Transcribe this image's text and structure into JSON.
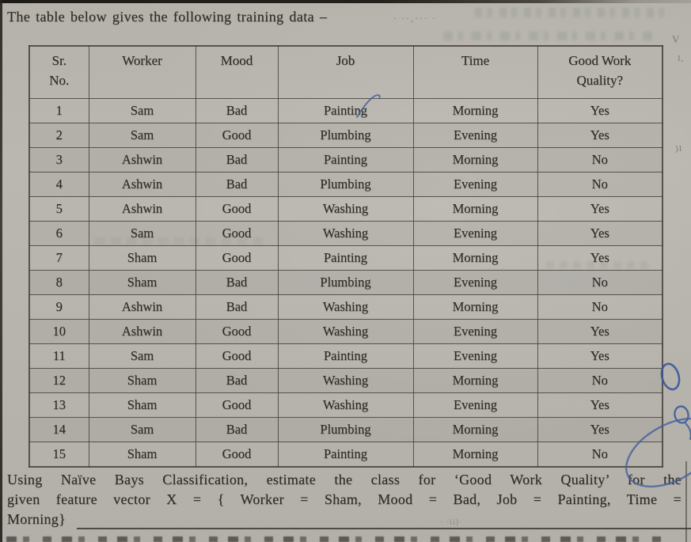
{
  "document": {
    "intro_line": "The table below gives the following training data –",
    "question_lines": [
      "Using Naïve Bays Classification, estimate the class for ‘Good Work Quality’ for the",
      "given feature vector X = { Worker = Sham, Mood = Bad, Job = Painting, Time =",
      "Morning}"
    ]
  },
  "table": {
    "headers": [
      "Sr.\nNo.",
      "Worker",
      "Mood",
      "Job",
      "Time",
      "Good Work\nQuality?"
    ],
    "rows": [
      [
        "1",
        "Sam",
        "Bad",
        "Painting",
        "Morning",
        "Yes"
      ],
      [
        "2",
        "Sam",
        "Good",
        "Plumbing",
        "Evening",
        "Yes"
      ],
      [
        "3",
        "Ashwin",
        "Bad",
        "Painting",
        "Morning",
        "No"
      ],
      [
        "4",
        "Ashwin",
        "Bad",
        "Plumbing",
        "Evening",
        "No"
      ],
      [
        "5",
        "Ashwin",
        "Good",
        "Washing",
        "Morning",
        "Yes"
      ],
      [
        "6",
        "Sam",
        "Good",
        "Washing",
        "Evening",
        "Yes"
      ],
      [
        "7",
        "Sham",
        "Good",
        "Painting",
        "Morning",
        "Yes"
      ],
      [
        "8",
        "Sham",
        "Bad",
        "Plumbing",
        "Evening",
        "No"
      ],
      [
        "9",
        "Ashwin",
        "Bad",
        "Washing",
        "Morning",
        "No"
      ],
      [
        "10",
        "Ashwin",
        "Good",
        "Washing",
        "Evening",
        "Yes"
      ],
      [
        "11",
        "Sam",
        "Good",
        "Painting",
        "Evening",
        "Yes"
      ],
      [
        "12",
        "Sham",
        "Bad",
        "Washing",
        "Morning",
        "No"
      ],
      [
        "13",
        "Sham",
        "Good",
        "Washing",
        "Evening",
        "Yes"
      ],
      [
        "14",
        "Sam",
        "Bad",
        "Plumbing",
        "Morning",
        "Yes"
      ],
      [
        "15",
        "Sham",
        "Good",
        "Painting",
        "Morning",
        "No"
      ]
    ]
  },
  "annotations": {
    "pen_color": "#44619f",
    "marks": [
      "tick-on-row1-painting",
      "zero-mark",
      "small-o-mark",
      "large-circle"
    ]
  },
  "artifacts": {
    "intro_trailing": "· ··‚··· ·",
    "margin_marks": [
      "V",
      "1,",
      ")1"
    ],
    "bottom_mark": "· ·ii)·"
  }
}
